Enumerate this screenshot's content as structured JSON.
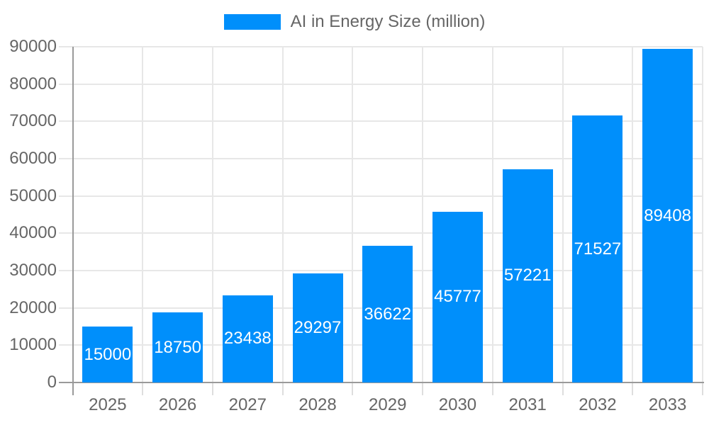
{
  "legend": {
    "label": "AI in Energy Size (million)"
  },
  "colors": {
    "bar": "#008FFB",
    "grid": "#e7e7e7",
    "axis": "#9a9a9a",
    "axis_text": "#666666",
    "value_label_text": "#ffffff",
    "background": "#ffffff"
  },
  "chart_data": {
    "type": "bar",
    "title": "",
    "series_name": "AI in Energy Size (million)",
    "categories": [
      "2025",
      "2026",
      "2027",
      "2028",
      "2029",
      "2030",
      "2031",
      "2032",
      "2033"
    ],
    "values": [
      15000,
      18750,
      23438,
      29297,
      36622,
      45777,
      57221,
      71527,
      89408
    ],
    "value_labels_shown": true,
    "value_label_position": "inside-center",
    "xlabel": "",
    "ylabel": "",
    "ylim": [
      0,
      90000
    ],
    "yticks": [
      0,
      10000,
      20000,
      30000,
      40000,
      50000,
      60000,
      70000,
      80000,
      90000
    ],
    "grid": true,
    "legend_position": "top-center"
  }
}
